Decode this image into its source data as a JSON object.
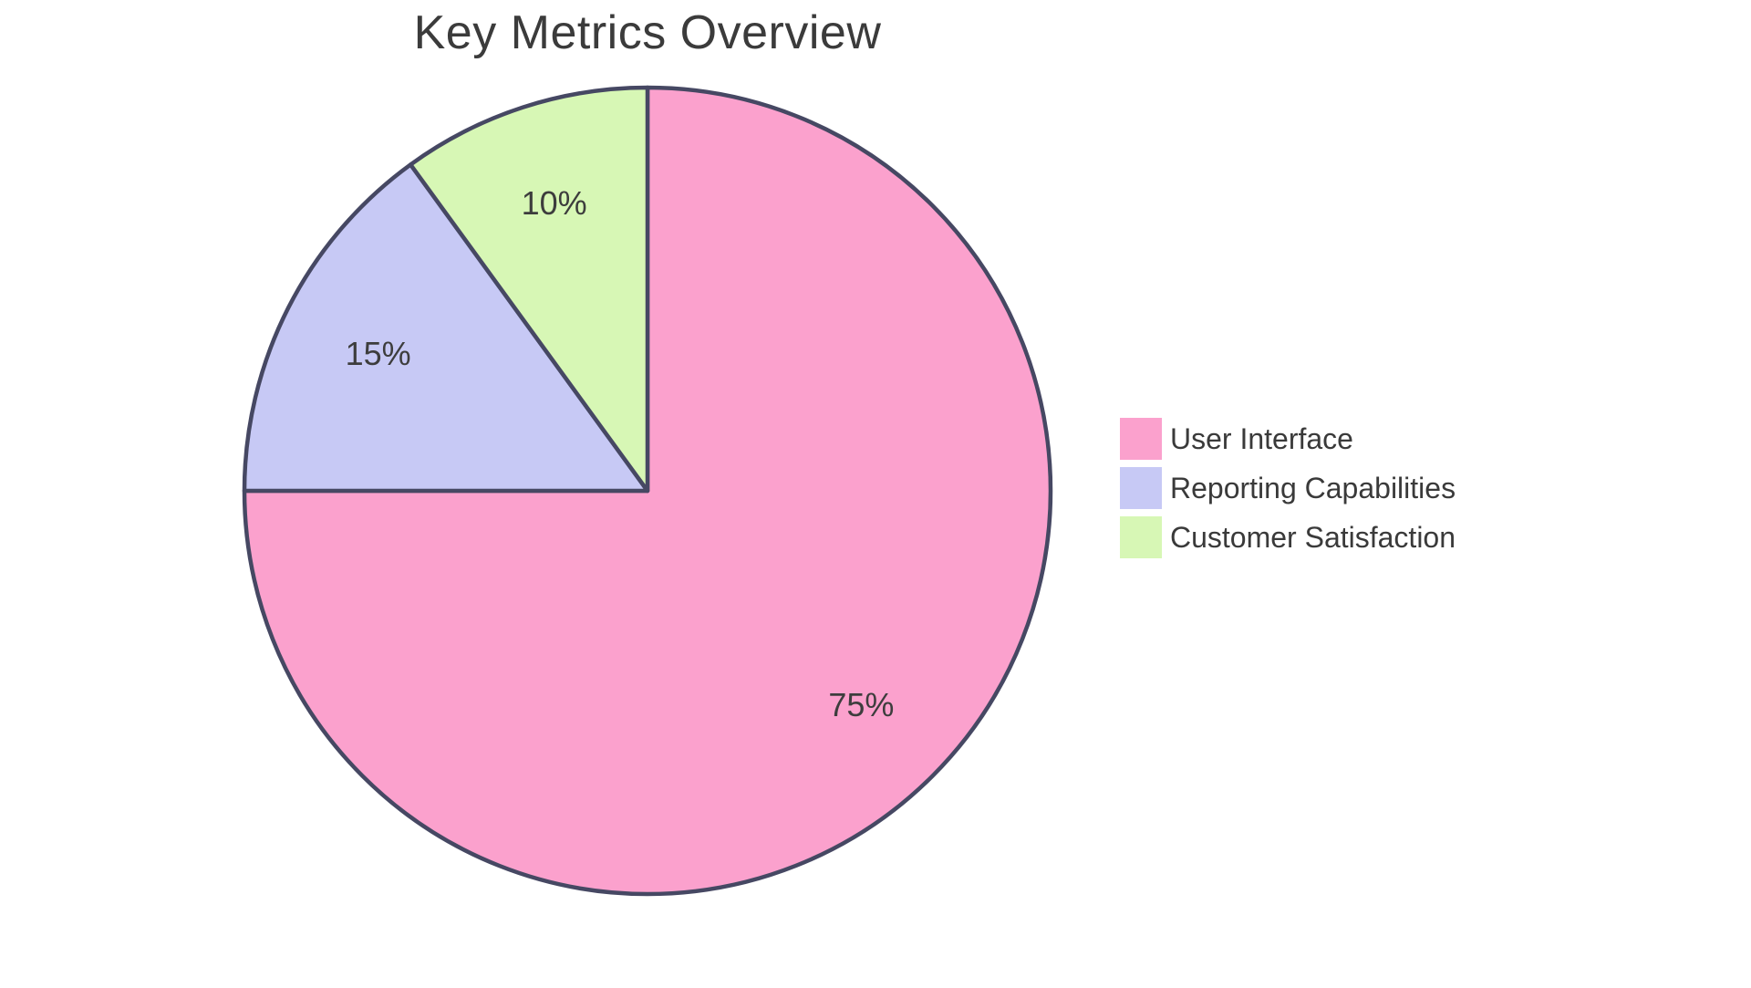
{
  "title": "Key Metrics Overview",
  "chart_data": {
    "type": "pie",
    "title": "Key Metrics Overview",
    "segments": [
      {
        "label": "User Interface",
        "value": 75,
        "display": "75%",
        "color": "#FBA1CD"
      },
      {
        "label": "Reporting Capabilities",
        "value": 15,
        "display": "15%",
        "color": "#C7C9F5"
      },
      {
        "label": "Customer Satisfaction",
        "value": 10,
        "display": "10%",
        "color": "#D7F7B5"
      }
    ],
    "start_angle_deg": 0,
    "direction": "clockwise",
    "stroke_color": "#464863",
    "stroke_width": 4.5,
    "label_color": "#3d3d3d",
    "title_color": "#3b3b3b",
    "legend_position": "right",
    "legend_text_color": "#3a3a3a",
    "background": "#FFFFFF"
  }
}
